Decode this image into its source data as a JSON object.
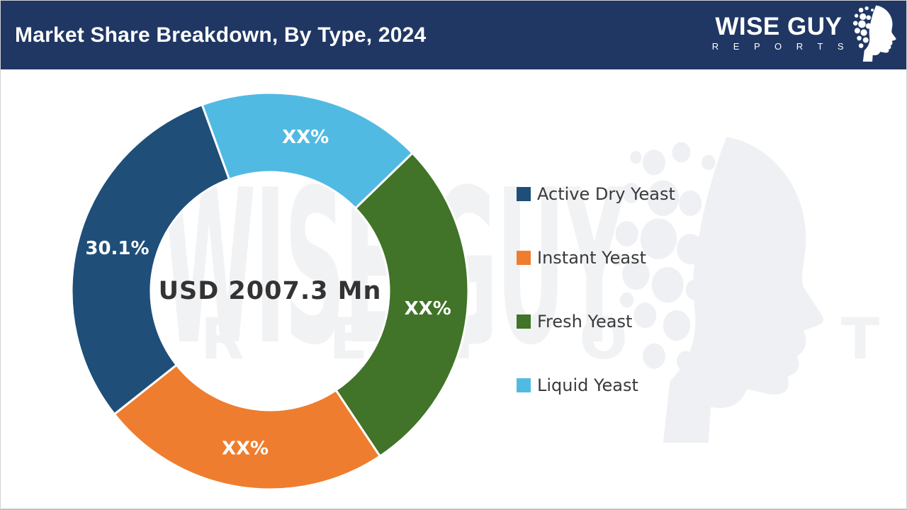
{
  "header": {
    "title": "Market Share Breakdown, By Type, 2024",
    "brand_name": "WISE GUY",
    "brand_sub": "R E P O R T S",
    "bg_color": "#203764"
  },
  "watermark": {
    "line1": "WISE GUY",
    "line2": "R E P O R T S"
  },
  "chart_data": {
    "type": "pie",
    "subtype": "donut",
    "title": "Market Share Breakdown, By Type, 2024",
    "center_label": "USD 2007.3 Mn",
    "start_angle_deg": 110,
    "direction": "counterclockwise",
    "inner_radius_ratio": 0.6,
    "legend_position": "right",
    "segments": [
      {
        "name": "Active Dry Yeast",
        "value_pct": 30.1,
        "label": "30.1%",
        "color": "#1F4E79"
      },
      {
        "name": "Instant Yeast",
        "value_pct": 23.7,
        "label": "XX%",
        "color": "#EE7D2F"
      },
      {
        "name": "Fresh Yeast",
        "value_pct": 27.9,
        "label": "XX%",
        "color": "#417328"
      },
      {
        "name": "Liquid Yeast",
        "value_pct": 18.3,
        "label": "XX%",
        "color": "#51BAE3"
      }
    ]
  }
}
